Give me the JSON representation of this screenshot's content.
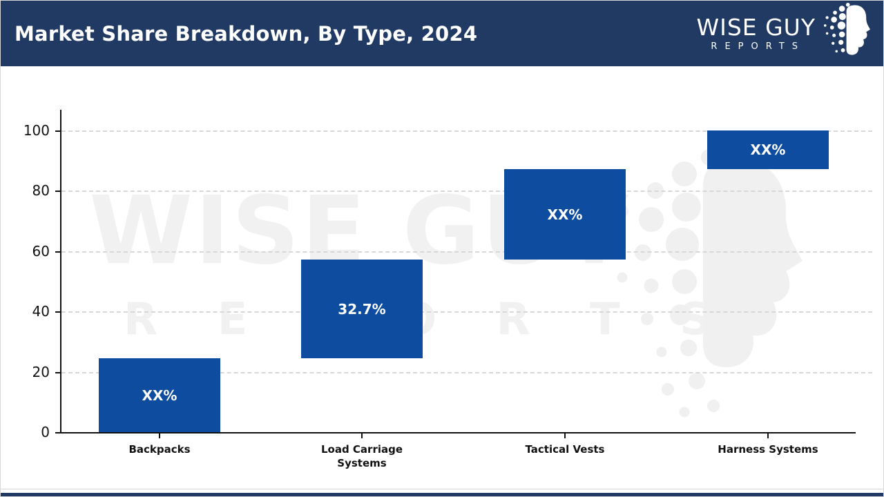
{
  "header": {
    "title": "Market Share Breakdown, By Type, 2024",
    "bg_color": "#213a63",
    "logo": {
      "line1": "WISE GUY",
      "line2": "REPORTS"
    }
  },
  "watermark": {
    "line1": "WISE GUY",
    "line2": "R E P O R T S"
  },
  "chart_data": {
    "type": "waterfall-bar",
    "title": "Market Share Breakdown, By Type, 2024",
    "categories": [
      "Backpacks",
      "Load Carriage Systems",
      "Tactical Vests",
      "Harness Systems"
    ],
    "segments": [
      {
        "category": "Backpacks",
        "label": "XX%",
        "start": 0,
        "end": 24.4
      },
      {
        "category": "Load Carriage Systems",
        "label": "32.7%",
        "start": 24.4,
        "end": 57.1
      },
      {
        "category": "Tactical Vests",
        "label": "XX%",
        "start": 57.1,
        "end": 87.0
      },
      {
        "category": "Harness Systems",
        "label": "XX%",
        "start": 87.0,
        "end": 100.0
      }
    ],
    "values_shown": [
      "XX%",
      "32.7%",
      "XX%",
      "XX%"
    ],
    "yticks": [
      0,
      20,
      40,
      60,
      80,
      100
    ],
    "ylim": [
      0,
      107
    ],
    "grid": "horizontal-dashed",
    "legend": "none",
    "bar_color": "#0d4c9e",
    "bar_label_color": "#ffffff",
    "axis_color": "#111111"
  }
}
